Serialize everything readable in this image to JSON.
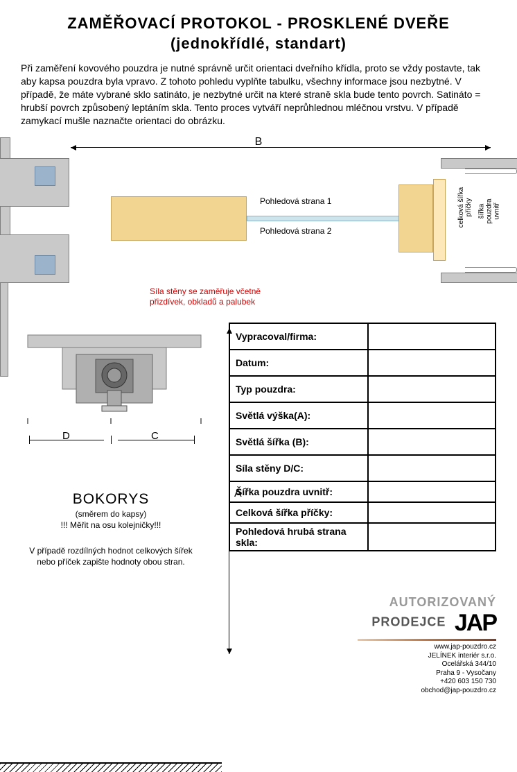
{
  "title": {
    "line1": "ZAMĚŘOVACÍ PROTOKOL - PROSKLENÉ DVEŘE",
    "line2": "(jednokřídlé, standart)"
  },
  "description": "Při zaměření kovového pouzdra je nutné správně určit orientaci dveřního křídla, proto se vždy postavte, tak aby kapsa pouzdra byla vpravo. Z tohoto pohledu vyplňte tabulku, všechny informace jsou nezbytné. V případě, že máte vybrané sklo satináto, je nezbytné určit na které straně skla bude tento povrch. Satináto = hrubší povrch způsobený leptáním skla. Tento proces vytváří neprůhlednou mléčnou vrstvu. V případě zamykací mušle naznačte orientaci do obrázku.",
  "diagram": {
    "dim_b": "B",
    "dim_a": "A",
    "dim_c": "C",
    "dim_d": "D",
    "pohled1": "Pohledová strana 1",
    "pohled2": "Pohledová strana 2",
    "red_note_1": "Síla stěny se zaměřuje včetně",
    "red_note_2": "přizdívek, obkladů a palubek",
    "vert_label_1": "celková šířka příčky",
    "vert_label_2": "šířka pouzdra uvnitř",
    "colors": {
      "wall": "#c9c9c9",
      "door": "#f3d592",
      "glass": "#cde4ed",
      "blue_box": "#9bb4cc",
      "red_text": "#cc0000"
    }
  },
  "bokorys": {
    "title": "BOKORYS",
    "sub": "(směrem do kapsy)",
    "warn": "!!! Měřit na osu kolejničky!!!",
    "note": "V případě rozdílných hodnot celkových šířek nebo příček zapište hodnoty obou stran."
  },
  "table": {
    "rows": [
      {
        "label": "Vypracoval/firma:",
        "value": ""
      },
      {
        "label": "Datum:",
        "value": ""
      },
      {
        "label": "Typ pouzdra:",
        "value": ""
      },
      {
        "label": "Světlá výška(A):",
        "value": ""
      },
      {
        "label": "Světlá šířka (B):",
        "value": ""
      },
      {
        "label": "Síla stěny D/C:",
        "value": ""
      },
      {
        "label": "Šířka pouzdra uvnitř:",
        "value": ""
      },
      {
        "label": "Celková šířka příčky:",
        "value": ""
      },
      {
        "label": "Pohledová hrubá strana skla:",
        "value": ""
      }
    ]
  },
  "footer": {
    "auth1": "AUTORIZOVANÝ",
    "auth2": "PRODEJCE",
    "brand": "JAP",
    "web": "www.jap-pouzdro.cz",
    "company": "JELÍNEK interiér s.r.o.",
    "street": "Ocelářská 344/10",
    "city": "Praha 9 - Vysočany",
    "phone": "+420 603 150 730",
    "email": "obchod@jap-pouzdro.cz"
  }
}
